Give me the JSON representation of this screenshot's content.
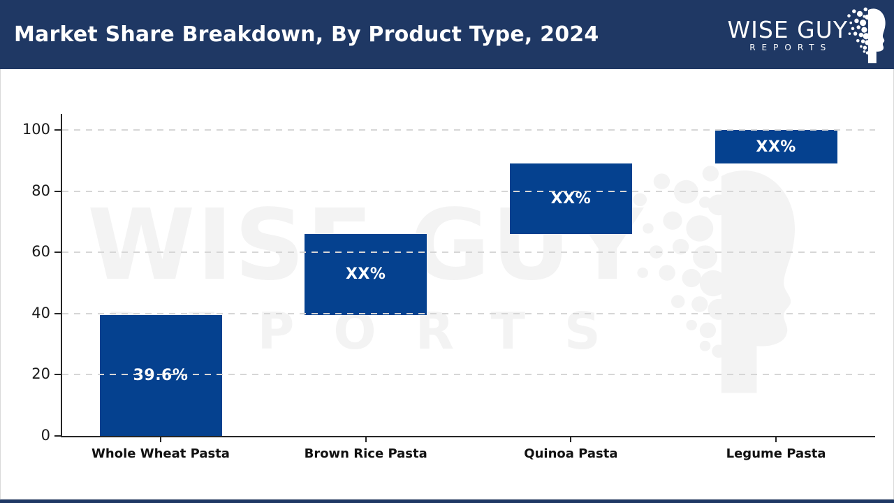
{
  "header": {
    "title": "Market Share Breakdown, By Product Type, 2024",
    "logo": {
      "line1": "WISE GUY",
      "line2": "REPORTS"
    }
  },
  "watermark": {
    "line1": "WISE GUY",
    "line2": "REPORTS"
  },
  "footer": {},
  "chart_data": {
    "type": "bar",
    "subtype": "floating-waterfall-segments",
    "title": "Market Share Breakdown, By Product Type, 2024",
    "categories": [
      "Whole Wheat Pasta",
      "Brown Rice Pasta",
      "Quinoa Pasta",
      "Legume Pasta"
    ],
    "segments": [
      {
        "category": "Whole Wheat Pasta",
        "from": 0,
        "to": 39.6,
        "label": "39.6%"
      },
      {
        "category": "Brown Rice Pasta",
        "from": 39.6,
        "to": 66,
        "label": "XX%"
      },
      {
        "category": "Quinoa Pasta",
        "from": 66,
        "to": 89,
        "label": "XX%"
      },
      {
        "category": "Legume Pasta",
        "from": 89,
        "to": 100,
        "label": "XX%"
      }
    ],
    "xlabel": "",
    "ylabel": "",
    "yticks": [
      0,
      20,
      40,
      60,
      80,
      100
    ],
    "ylim": [
      0,
      105
    ],
    "grid": "dashed-horizontal-over-bars",
    "legend": "none",
    "bar_color": "#05418f",
    "bar_label_color": "#ffffff",
    "axis_color": "#262626",
    "grid_color": "#d6d6d6"
  },
  "colors": {
    "header_bg": "#1f3864",
    "footer_bg": "#1f3864",
    "bar": "#05418f",
    "watermark": "#f3f3f3",
    "canvas_border": "#d9d9d9"
  }
}
